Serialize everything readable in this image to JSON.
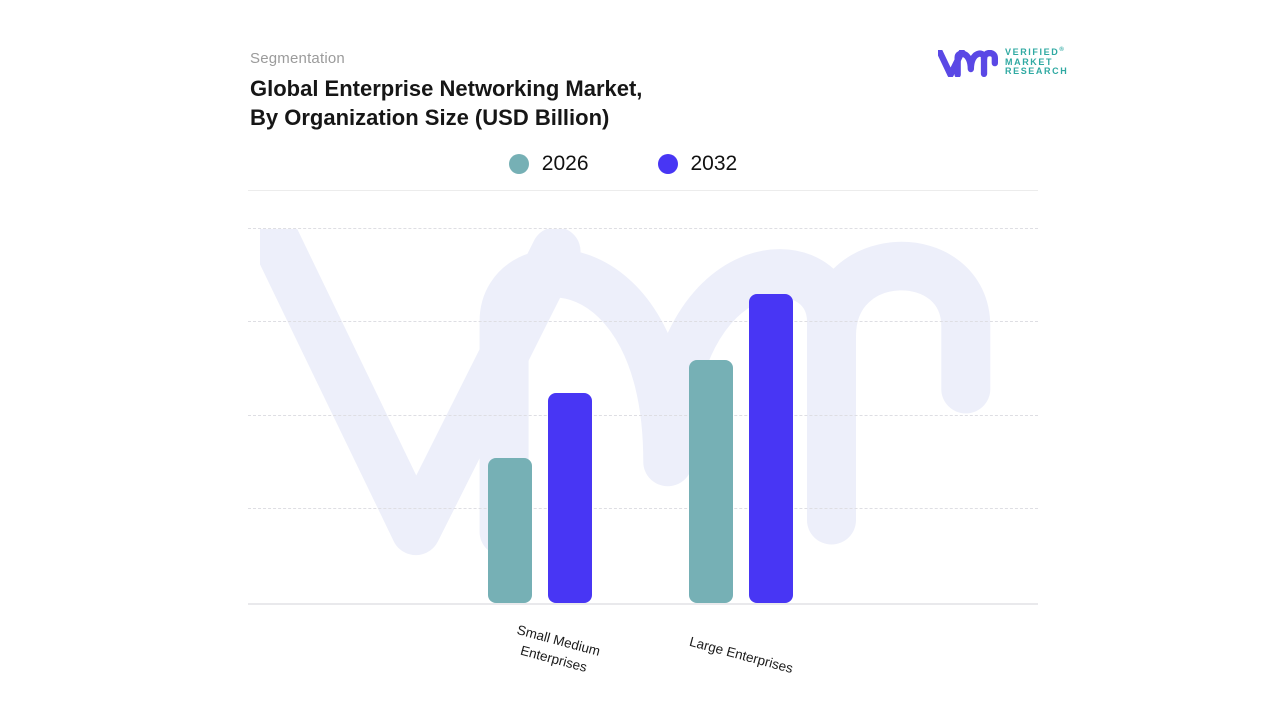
{
  "header": {
    "eyebrow": "Segmentation",
    "title_line1": "Global Enterprise Networking Market,",
    "title_line2": "By Organization Size (USD Billion)"
  },
  "logo": {
    "monogram": "vmr",
    "line1": "VERIFIED",
    "registered": "®",
    "line2": "MARKET",
    "line3": "RESEARCH",
    "mark_color": "#5a48e5",
    "text_color": "#2fa9a2"
  },
  "legend": {
    "items": [
      {
        "label": "2026",
        "color": "#76b0b5"
      },
      {
        "label": "2032",
        "color": "#4836f4"
      }
    ]
  },
  "chart_data": {
    "type": "bar",
    "title": "Global Enterprise Networking Market, By Organization Size (USD Billion)",
    "categories": [
      "Small Medium Enterprises",
      "Large Enterprises"
    ],
    "series": [
      {
        "name": "2026",
        "color": "#76b0b5",
        "values": [
          1.55,
          2.6
        ]
      },
      {
        "name": "2032",
        "color": "#4836f4",
        "values": [
          2.25,
          3.3
        ]
      }
    ],
    "xlabel": "",
    "ylabel": "",
    "value_unit": "USD Billion",
    "y_axis": {
      "tick_labels_shown": false,
      "ylim": [
        0,
        4
      ],
      "estimation": "values estimated in dashed-gridline units; no numeric ticks are displayed"
    },
    "grid": "horizontal dashed",
    "legend_position": "top-center",
    "watermark_text": "vmr",
    "bar_corner_radius": 8
  },
  "colors": {
    "watermark": "#edeffa",
    "gridline": "#dedee3",
    "baseline": "#e9e9ec",
    "separator": "#ececec",
    "title_text": "#161616",
    "muted_text": "#9b9b9b",
    "label_text": "#1a1a1a"
  }
}
